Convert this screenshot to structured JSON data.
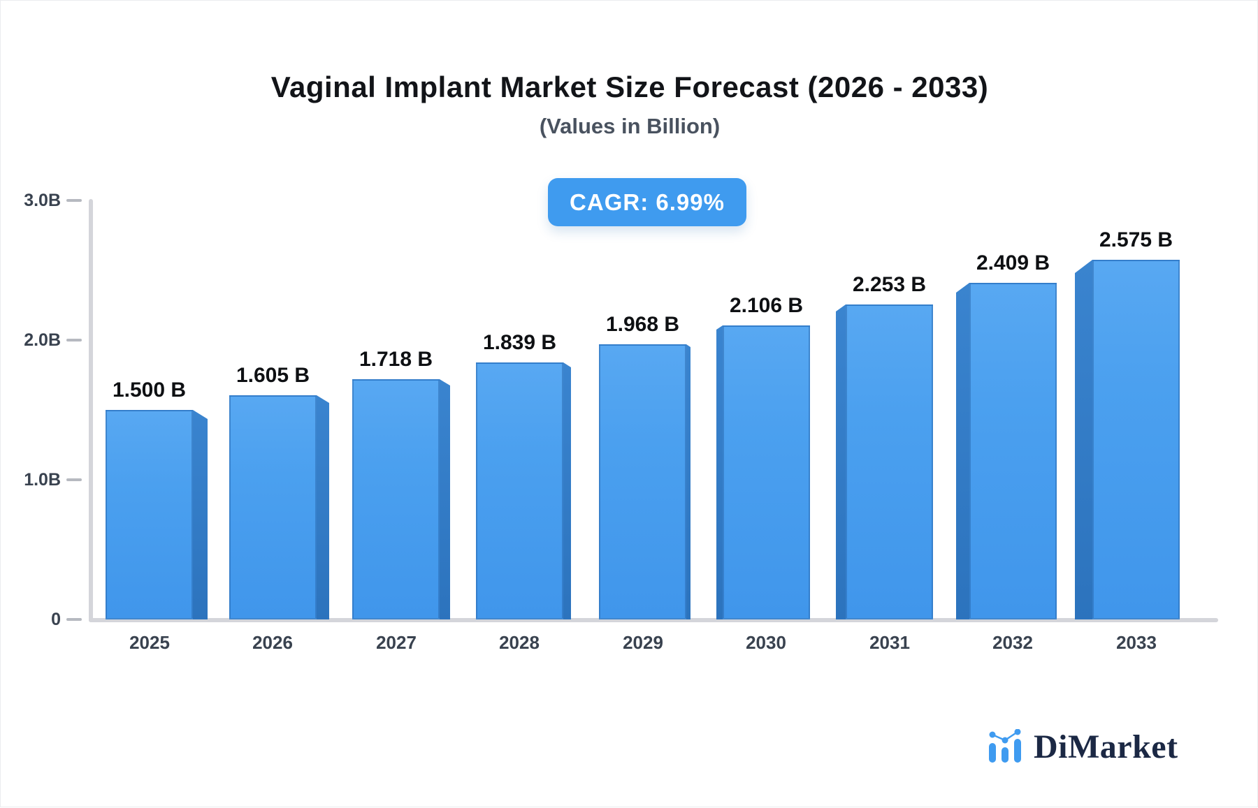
{
  "header": {
    "title": "Vaginal Implant Market Size Forecast (2026 - 2033)",
    "subtitle": "(Values in Billion)",
    "cagr_badge": "CAGR: 6.99%"
  },
  "chart_data": {
    "type": "bar",
    "title": "Vaginal Implant Market Size Forecast (2026 - 2033)",
    "subtitle": "(Values in Billion)",
    "cagr_percent": 6.99,
    "categories": [
      "2025",
      "2026",
      "2027",
      "2028",
      "2029",
      "2030",
      "2031",
      "2032",
      "2033"
    ],
    "values": [
      1.5,
      1.605,
      1.718,
      1.839,
      1.968,
      2.106,
      2.253,
      2.409,
      2.575
    ],
    "value_labels": [
      "1.500 B",
      "1.605 B",
      "1.718 B",
      "1.839 B",
      "1.968 B",
      "2.106 B",
      "2.253 B",
      "2.409 B",
      "2.575 B"
    ],
    "y_ticks": [
      {
        "label": "3.0B",
        "value": 3.0
      },
      {
        "label": "2.0B",
        "value": 2.0
      },
      {
        "label": "1.0B",
        "value": 1.0
      },
      {
        "label": "0",
        "value": 0
      }
    ],
    "ylim": [
      0,
      3
    ],
    "xlabel": "",
    "ylabel": "",
    "grid": "off",
    "legend": "none",
    "bar_color": "#4ba0ef",
    "bar_side_color": "#2e77c2",
    "badge_color": "#3f9bef"
  },
  "footer": {
    "brand": "DiMarket"
  }
}
